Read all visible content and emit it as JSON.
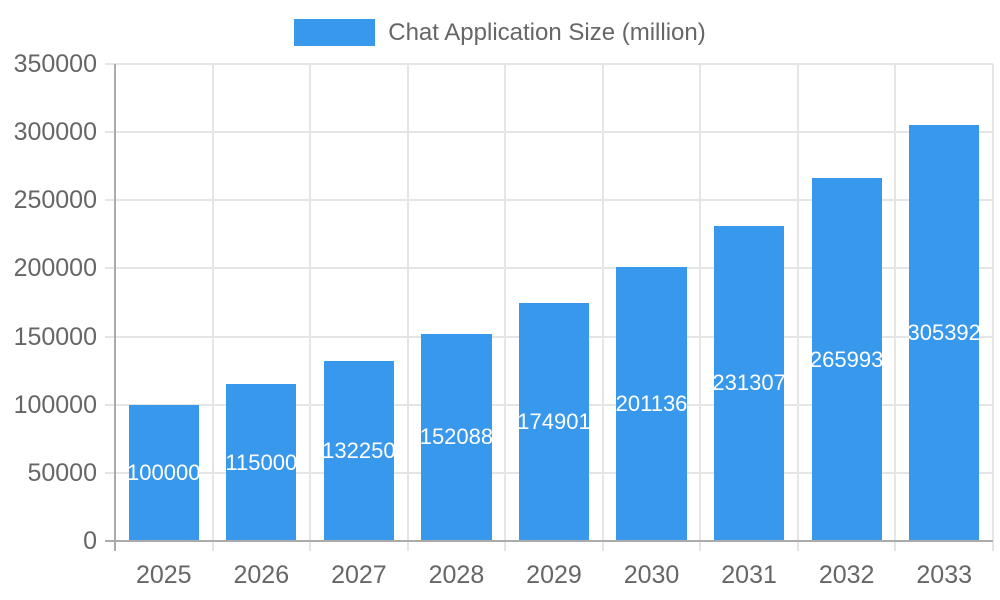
{
  "chart_data": {
    "type": "bar",
    "title": "Chat Application Size (million)",
    "categories": [
      "2025",
      "2026",
      "2027",
      "2028",
      "2029",
      "2030",
      "2031",
      "2032",
      "2033"
    ],
    "values": [
      100000,
      115000,
      132250,
      152088,
      174901,
      201136,
      231307,
      265993,
      305392
    ],
    "xlabel": "",
    "ylabel": "",
    "ylim": [
      0,
      350000
    ],
    "ytick_step": 50000,
    "yticks": [
      0,
      50000,
      100000,
      150000,
      200000,
      250000,
      300000,
      350000
    ],
    "grid": true,
    "legend_position": "top",
    "bar_color": "#3898EC",
    "value_label_color": "#FFFFFF"
  },
  "colors": {
    "background": "#FFFFFF",
    "axis_text": "#666666",
    "grid_light": "#E5E5E5",
    "grid_dark": "#ABABAB",
    "bar": "#3898EC",
    "value_label": "#FFFFFF"
  }
}
